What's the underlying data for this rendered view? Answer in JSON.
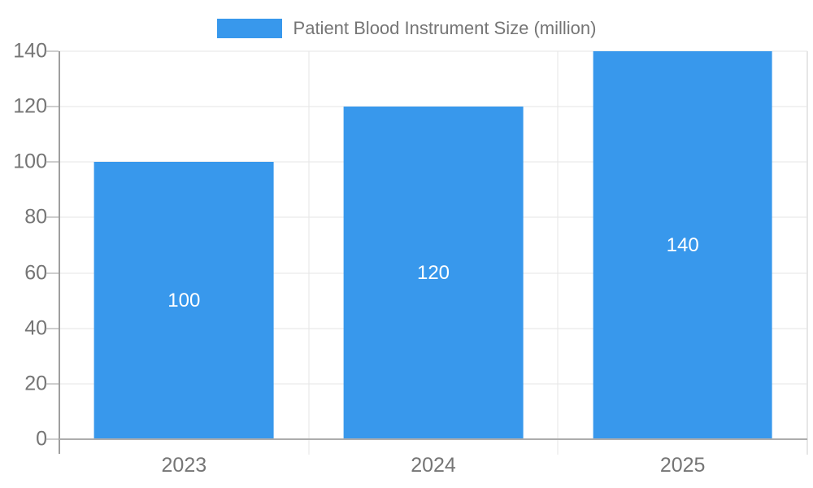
{
  "chart_data": {
    "type": "bar",
    "title": "Patient Blood Instrument Size (million)",
    "categories": [
      "2023",
      "2024",
      "2025"
    ],
    "series": [
      {
        "name": "Patient Blood Instrument Size (million)",
        "values": [
          100,
          120,
          140
        ]
      }
    ],
    "data_labels": true,
    "xlabel": "",
    "ylabel": "",
    "ylim": [
      0,
      140
    ],
    "yticks": [
      0,
      20,
      40,
      60,
      80,
      100,
      120,
      140
    ],
    "grid": true,
    "legend_position": "top",
    "bar_width_percent_of_slot": 72,
    "colors": {
      "bar": "#3898EC",
      "data_label": "#FFFFFF",
      "axis_text": "#757575",
      "title_text": "#757575",
      "axis_line": "#9E9E9E",
      "baseline": "#ADADAD",
      "gridline": "#E6E6E6",
      "background": "#FFFFFF"
    }
  }
}
